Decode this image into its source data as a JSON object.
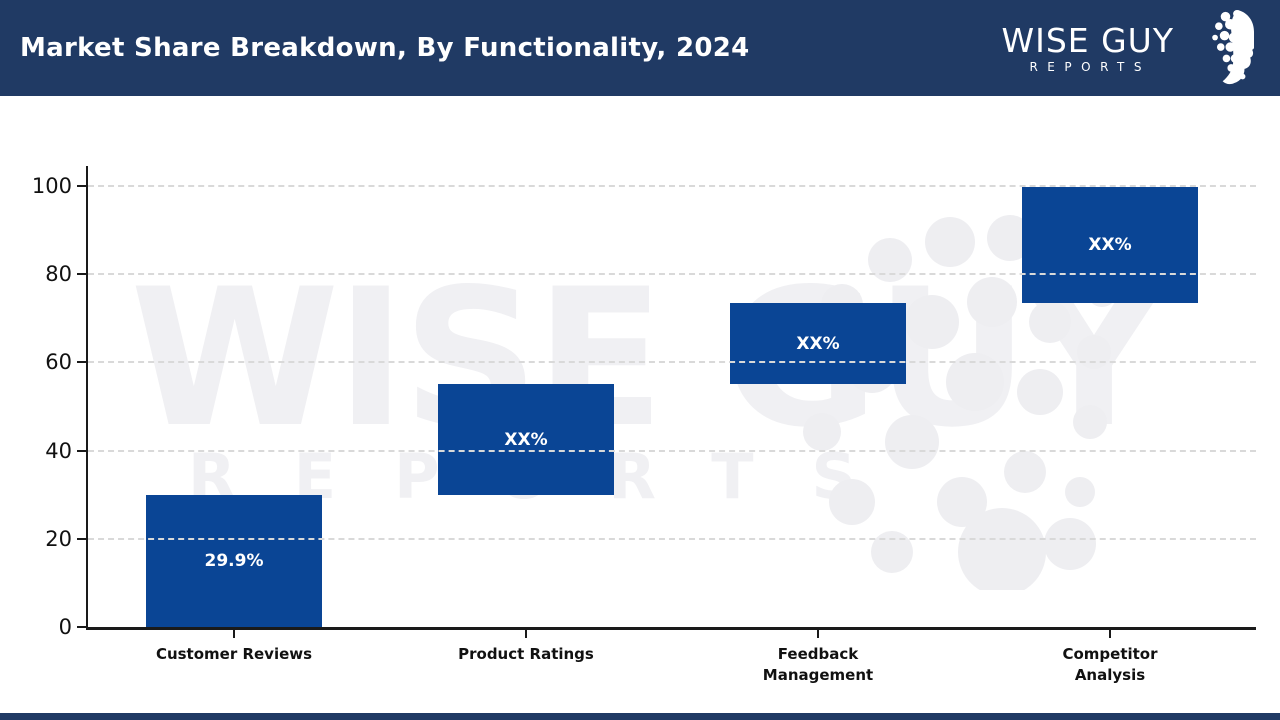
{
  "header": {
    "title": "Market Share Breakdown, By Functionality, 2024",
    "logo": {
      "line1": "WISE GUY",
      "line2": "REPORTS"
    }
  },
  "watermark": {
    "line1": "WISE GUY",
    "line2": "REPORTS"
  },
  "colors": {
    "header_bg": "#203a64",
    "footer_bg": "#203a64",
    "bar": "#0a4595",
    "grid": "#d9d9d9",
    "axis": "#1a1a1a",
    "bar_label_text": "#ffffff",
    "watermark": "#f0f0f3"
  },
  "chart_data": {
    "type": "bar",
    "subtype": "waterfall-breakdown",
    "title": "Market Share Breakdown, By Functionality, 2024",
    "categories": [
      "Customer Reviews",
      "Product Ratings",
      "Feedback\nManagement",
      "Competitor\nAnalysis"
    ],
    "segments": [
      {
        "category": "Customer Reviews",
        "start": 0,
        "end": 29.9,
        "label": "29.9%"
      },
      {
        "category": "Product Ratings",
        "start": 29.9,
        "end": 55.0,
        "label": "XX%"
      },
      {
        "category": "Feedback\nManagement",
        "start": 55.0,
        "end": 73.5,
        "label": "XX%"
      },
      {
        "category": "Competitor\nAnalysis",
        "start": 73.5,
        "end": 99.8,
        "label": "XX%"
      }
    ],
    "ylim": [
      0,
      100
    ],
    "yticks": [
      0,
      20,
      40,
      60,
      80,
      100
    ],
    "xlabel": "",
    "ylabel": "",
    "grid": "horizontal-dashed",
    "legend": "none",
    "bar_color": "#0a4595"
  }
}
